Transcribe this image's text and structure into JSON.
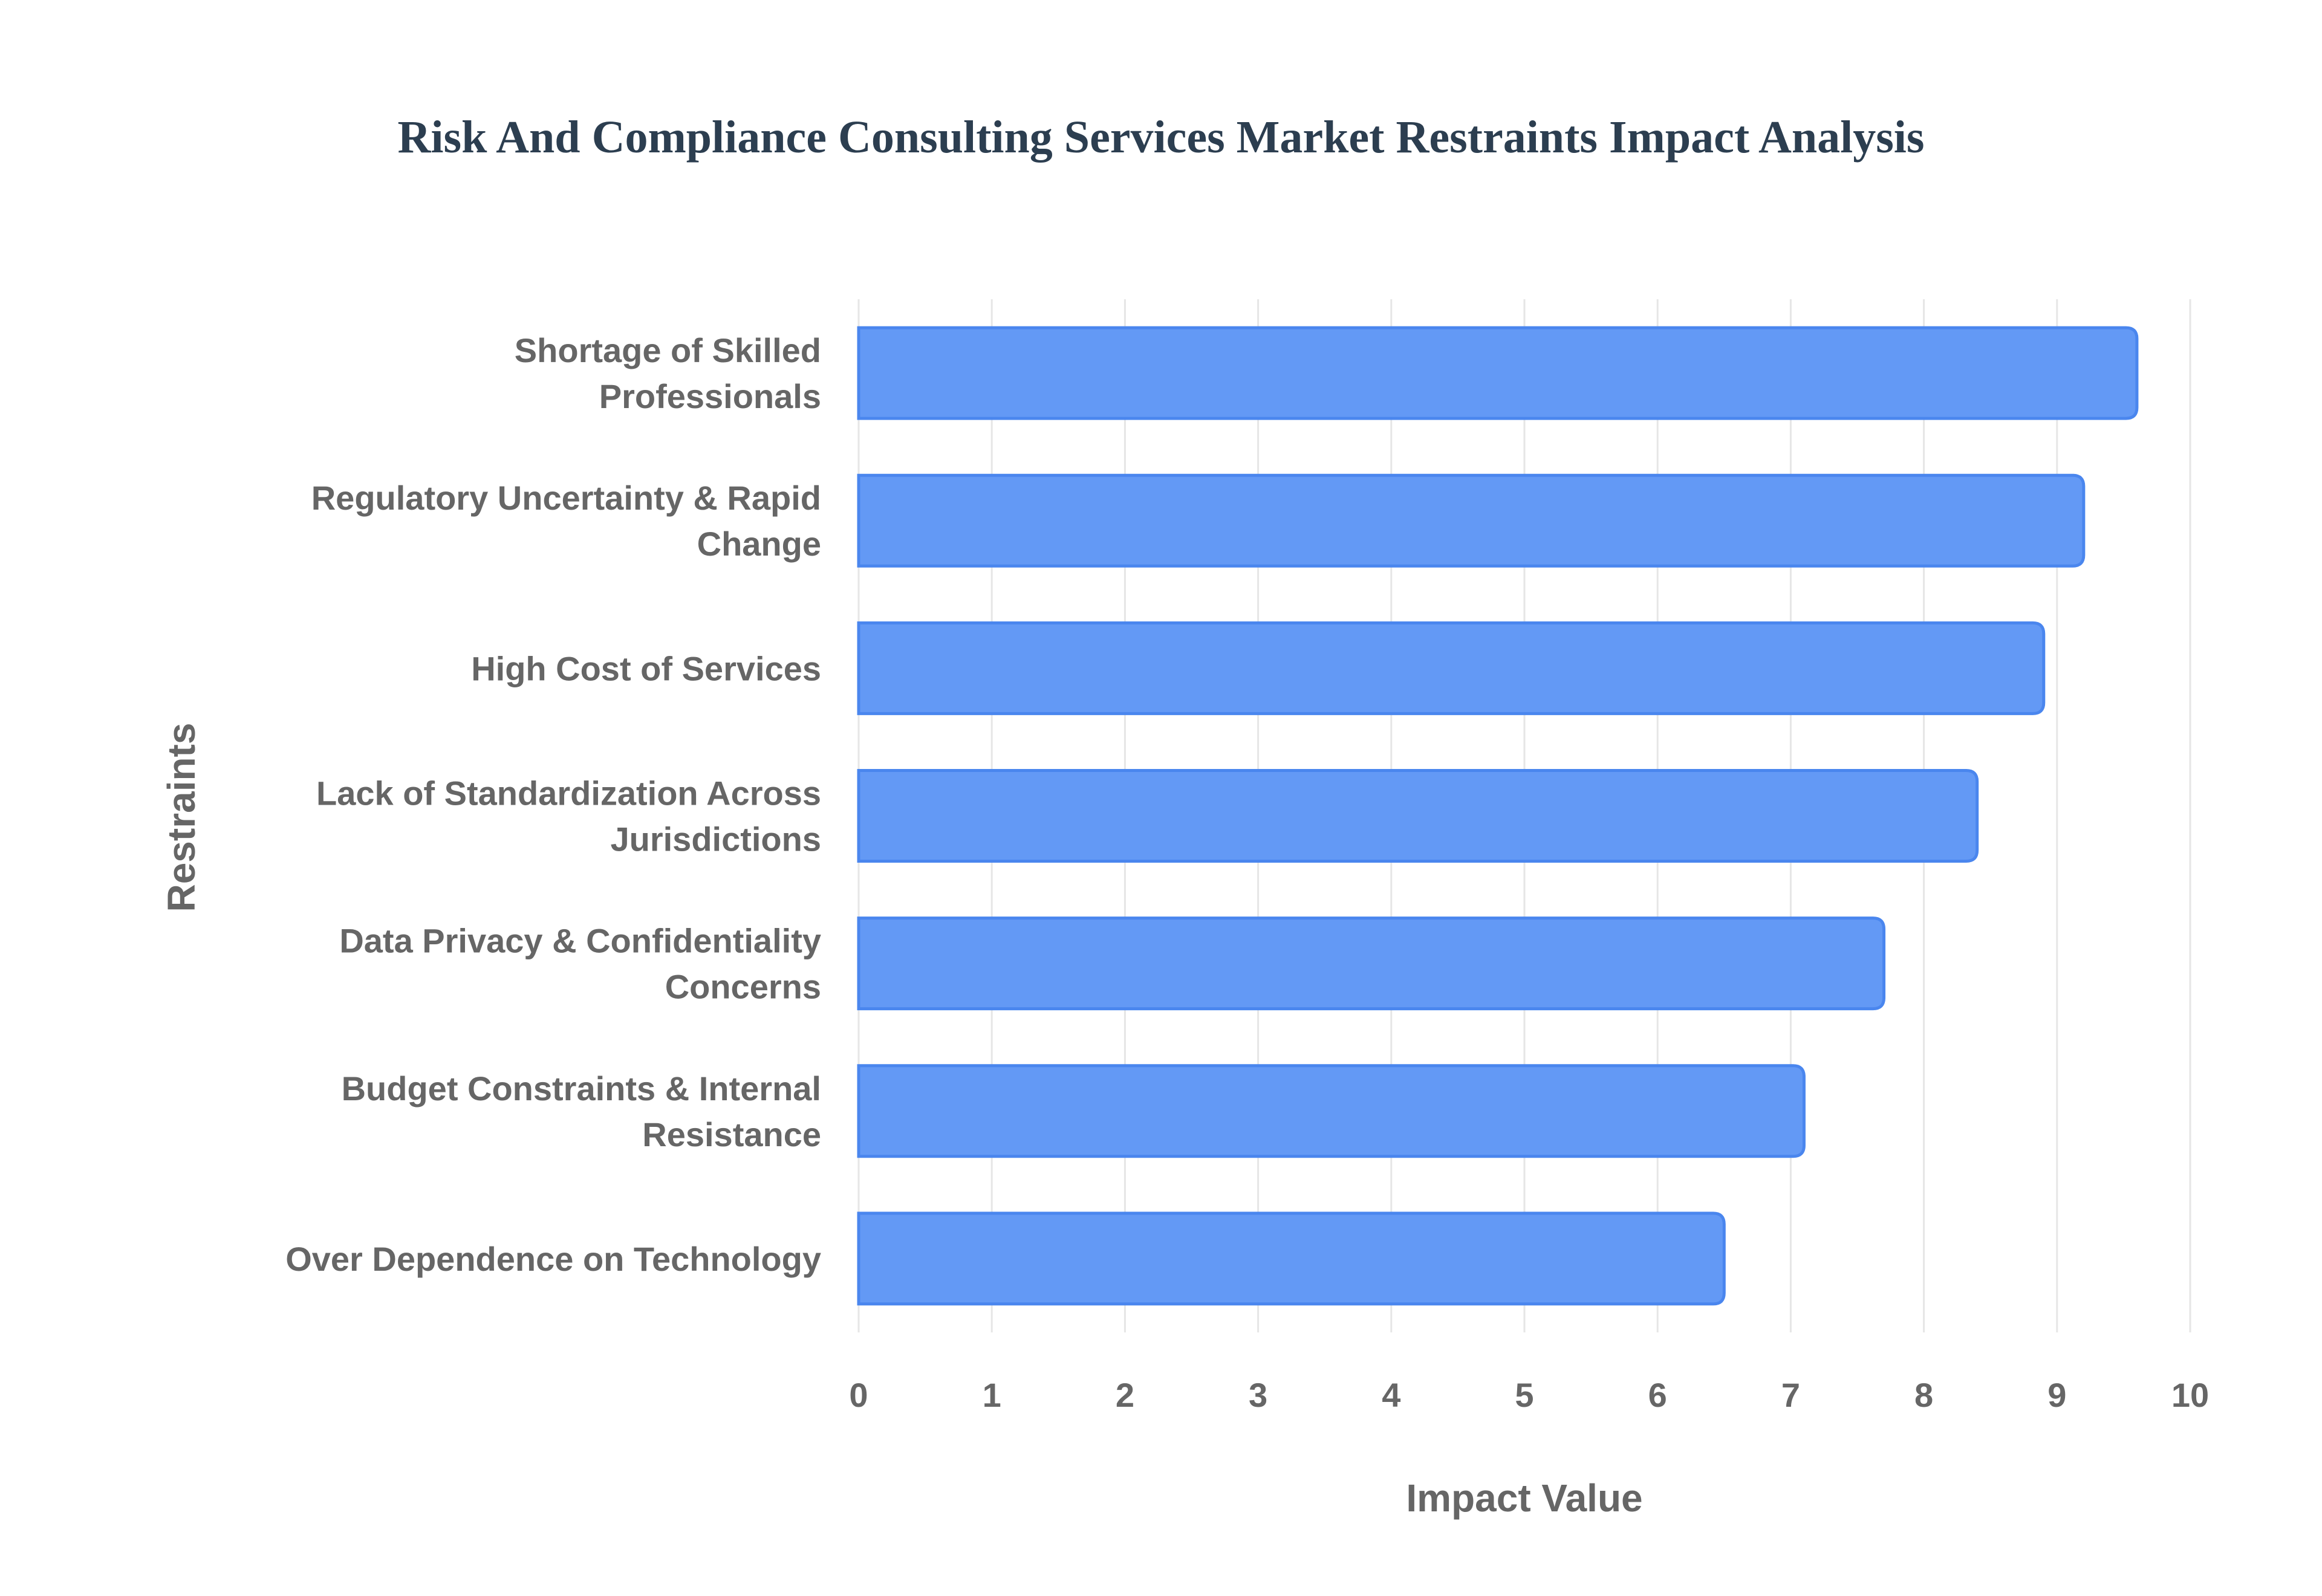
{
  "chart_data": {
    "type": "bar",
    "orientation": "horizontal",
    "title": "Risk And Compliance Consulting Services Market Restraints Impact Analysis",
    "xlabel": "Impact Value",
    "ylabel": "Restraints",
    "xlim": [
      0,
      10
    ],
    "xticks": [
      "0",
      "1",
      "2",
      "3",
      "4",
      "5",
      "6",
      "7",
      "8",
      "9",
      "10"
    ],
    "grid": true,
    "bar_color": "#6399f5",
    "bar_border_color": "#4a86ee",
    "categories": [
      [
        "Shortage of Skilled",
        "Professionals"
      ],
      [
        "Regulatory Uncertainty & Rapid",
        "Change"
      ],
      [
        "High Cost of Services"
      ],
      [
        "Lack of Standardization Across",
        "Jurisdictions"
      ],
      [
        "Data Privacy & Confidentiality",
        "Concerns"
      ],
      [
        "Budget Constraints & Internal",
        "Resistance"
      ],
      [
        "Over Dependence on Technology"
      ]
    ],
    "values": [
      9.6,
      9.2,
      8.9,
      8.4,
      7.7,
      7.1,
      6.5
    ]
  }
}
